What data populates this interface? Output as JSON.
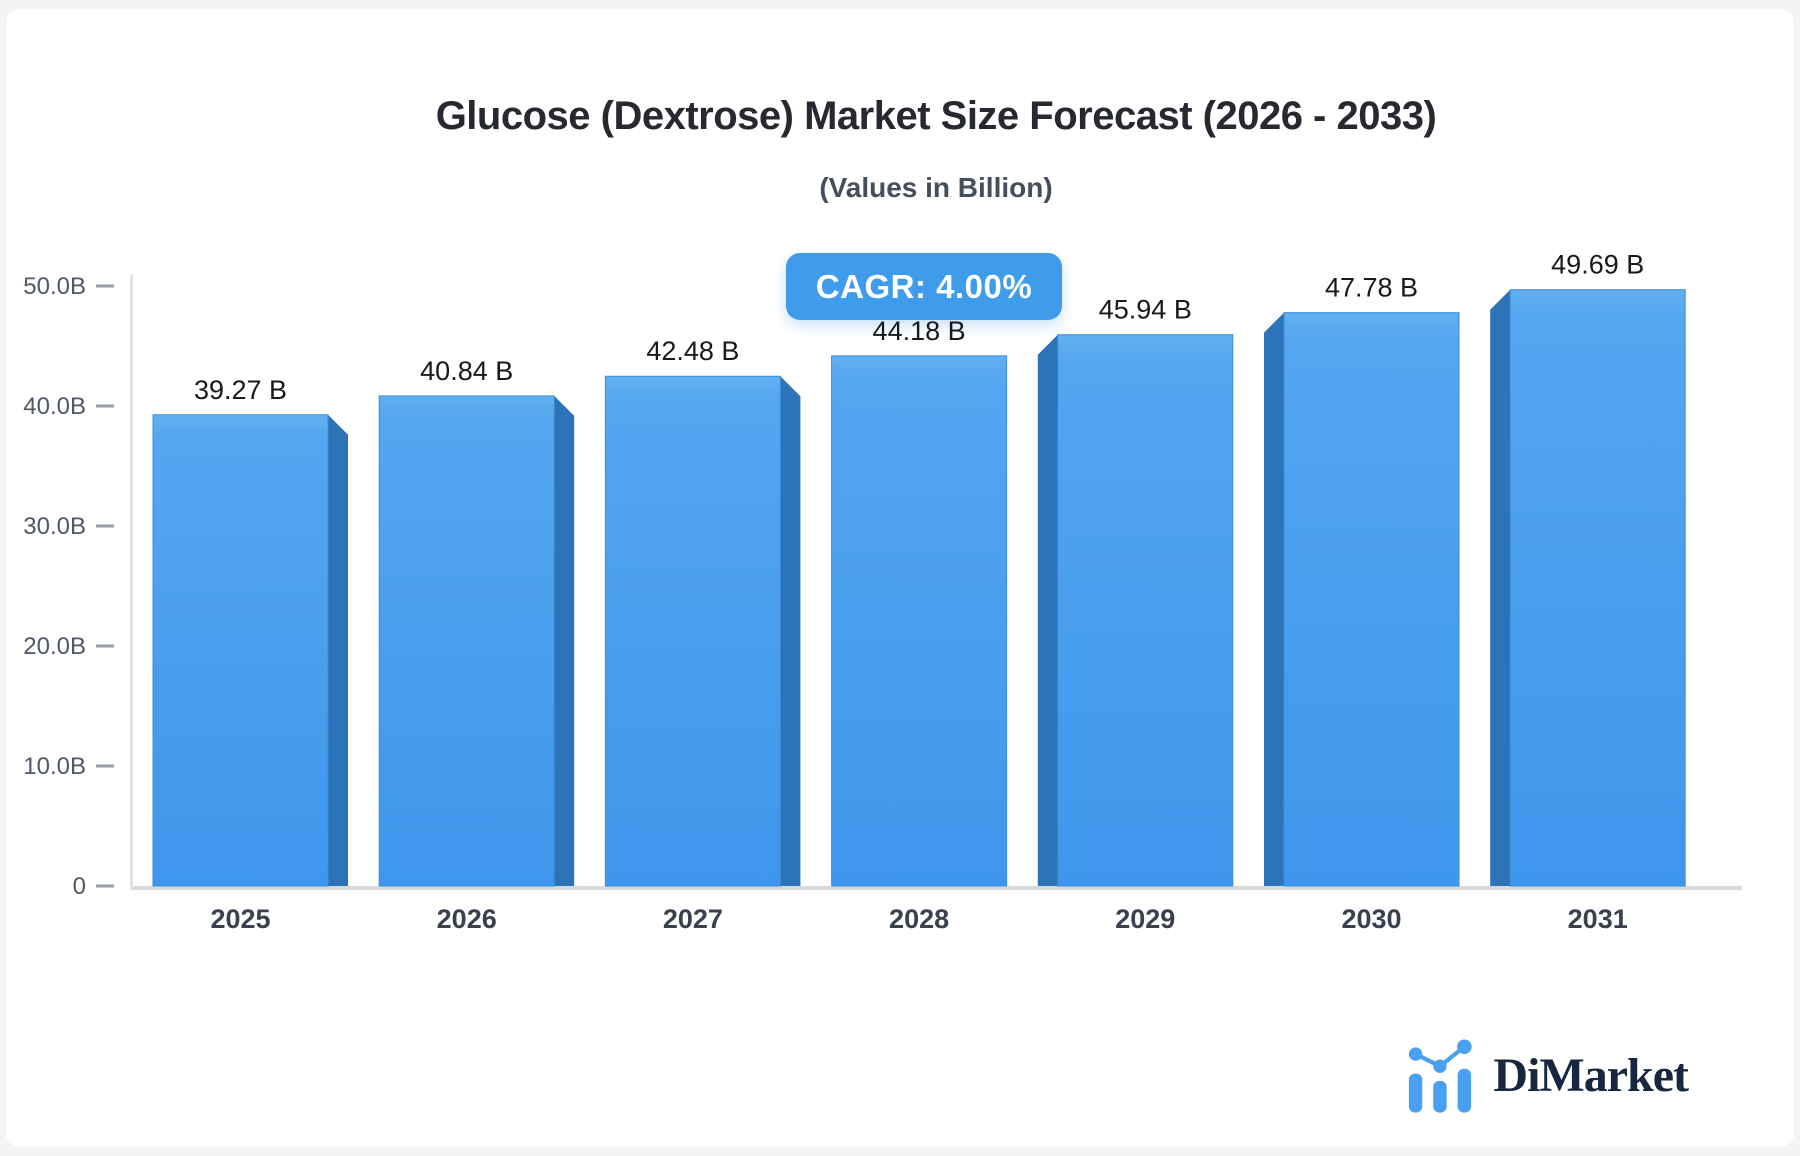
{
  "chart_data": {
    "type": "bar",
    "title": "Glucose (Dextrose) Market Size Forecast (2026 - 2033)",
    "subtitle": "(Values in Billion)",
    "categories": [
      "2025",
      "2026",
      "2027",
      "2028",
      "2029",
      "2030",
      "2031"
    ],
    "values": [
      39.27,
      40.84,
      42.48,
      44.18,
      45.94,
      47.78,
      49.69
    ],
    "value_labels": [
      "39.27 B",
      "40.84 B",
      "42.48 B",
      "44.18 B",
      "45.94 B",
      "47.78 B",
      "49.69 B"
    ],
    "annotation": "CAGR: 4.00%",
    "xlabel": "",
    "ylabel": "",
    "ylim": [
      0,
      50
    ],
    "yticks": [
      {
        "value": 0,
        "label": "0"
      },
      {
        "value": 10,
        "label": "10.0B"
      },
      {
        "value": 20,
        "label": "20.0B"
      },
      {
        "value": 30,
        "label": "30.0B"
      },
      {
        "value": 40,
        "label": "40.0B"
      },
      {
        "value": 50,
        "label": "50.0B"
      }
    ],
    "grid": false,
    "legend": false,
    "bar_style": "3d-extruded, flat center bar, side faces angled toward center vanishing point"
  },
  "logo": {
    "text": "DiMarket",
    "icon": "bar-chart-trend-icon"
  },
  "colors": {
    "page_bg": "#f2f4f6",
    "card_bg": "#ffffff",
    "title_text": "#26292f",
    "subtitle_text": "#454f5c",
    "badge_bg": "#3f9ceb",
    "badge_text": "#ffffff",
    "bar_face_top": "#63aff2",
    "bar_face_mid": "#54a6f0",
    "bar_face_bottom": "#3e97ec",
    "bar_border": "#3a8edb",
    "bar_side": "#2d73b7",
    "axis_line": "#e0e3e7",
    "baseline": "#d6d9dd",
    "tick_mark": "#99a0aa",
    "ytick_text": "#4f5866",
    "xtick_text": "#39414f",
    "value_text": "#17191c",
    "logo_navy": "#17273f",
    "logo_blue": "#4aa0f0"
  }
}
